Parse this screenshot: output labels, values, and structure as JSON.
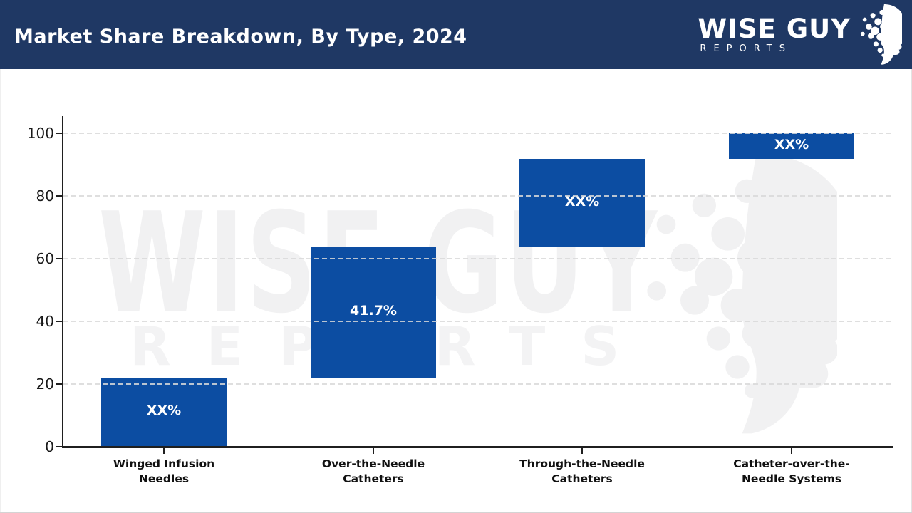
{
  "header": {
    "title": "Market Share Breakdown, By Type, 2024",
    "logo": {
      "line1": "WISE GUY",
      "line2": "REPORTS"
    }
  },
  "watermark": {
    "line1": "WISE GUY",
    "line2": "REPORTS"
  },
  "colors": {
    "header_bg": "#1f3864",
    "bar": "#0c4da2",
    "grid": "#d9d9d9",
    "axis": "#1f1f1f",
    "bar_label": "#ffffff",
    "watermark": "#f1f1f2"
  },
  "chart_data": {
    "type": "bar",
    "subtype": "waterfall-floating-segments",
    "title": "Market Share Breakdown, By Type, 2024",
    "categories": [
      "Winged Infusion\nNeedles",
      "Over-the-Needle\nCatheters",
      "Through-the-Needle\nCatheters",
      "Catheter-over-the-\nNeedle Systems"
    ],
    "segments": [
      {
        "label": "XX%",
        "start": 0,
        "end": 22.1
      },
      {
        "label": "41.7%",
        "start": 22.1,
        "end": 63.8
      },
      {
        "label": "XX%",
        "start": 63.8,
        "end": 91.7
      },
      {
        "label": "XX%",
        "start": 91.7,
        "end": 99.8
      }
    ],
    "ylim": [
      0,
      100
    ],
    "yticks": [
      0,
      20,
      40,
      60,
      80,
      100
    ],
    "xlabel": "",
    "ylabel": "",
    "grid": "dashed-horizontal",
    "legend": "none"
  }
}
